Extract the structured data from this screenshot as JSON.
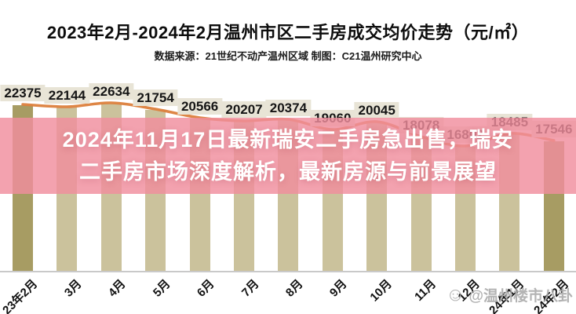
{
  "chart_data": {
    "type": "bar",
    "title": "2023年2月-2024年2月温州市区二手房成交均价走势（元/㎡）",
    "subtitle": "数据来源：21世纪不动产温州区域 制图：C21温州研究中心",
    "categories": [
      "23年2月",
      "3月",
      "4月",
      "5月",
      "6月",
      "7月",
      "8月",
      "9月",
      "10月",
      "11月",
      "12月",
      "24年1月",
      "24年2月"
    ],
    "values": [
      22375,
      22144,
      22634,
      21754,
      20566,
      20207,
      20374,
      19060,
      20045,
      18078,
      16802,
      18485,
      17546
    ],
    "series": [
      {
        "name": "成交均价柱形",
        "type": "bar"
      },
      {
        "name": "均价走势线",
        "type": "line"
      }
    ],
    "ylabel": "元/㎡",
    "ylim": [
      0,
      24000
    ],
    "grid": false,
    "legend_position": "none",
    "value_labels_visible": true,
    "highlight_indices": [
      0,
      12
    ]
  },
  "overlay": {
    "line1": "2024年11月17日最新瑞安二手房急出售，瑞安",
    "line2": "二手房市场深度解析，最新房源与前景展望"
  },
  "watermark": {
    "icon": "smiley-face",
    "text": "@温州楼市八卦"
  },
  "colors": {
    "bar": "#cbc29c",
    "bar_highlight": "#a79c63",
    "line": "#dc7f3c",
    "label_bg": "#e8e4d6",
    "label_text": "#151515",
    "banner_bg_rgba": "rgba(240,141,158,0.82)",
    "banner_text": "#ffffff",
    "axis_line": "#c9c9c9",
    "watermark": "rgba(168,168,168,0.88)"
  }
}
